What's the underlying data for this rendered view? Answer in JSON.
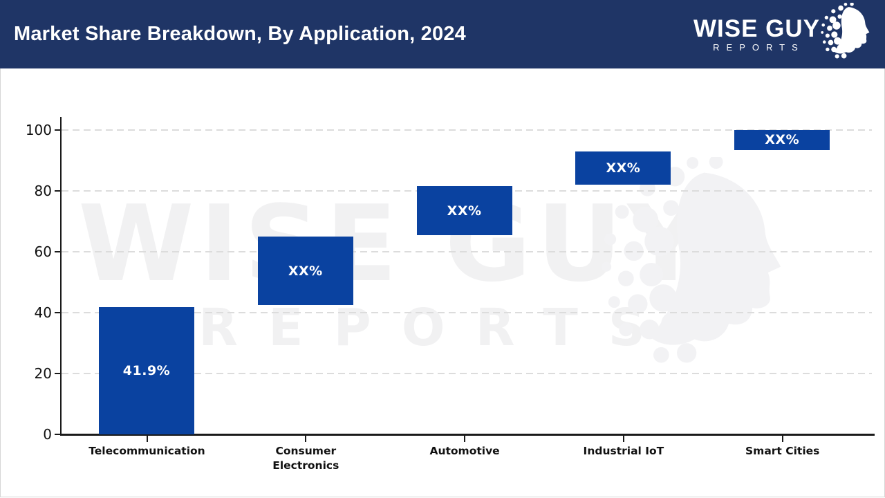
{
  "header": {
    "title": "Market Share Breakdown, By Application, 2024",
    "logo": {
      "line1": "WISE GUY",
      "line2": "REPORTS"
    }
  },
  "watermark": {
    "line1": "WISE GUY",
    "line2": "REPORTS"
  },
  "chart_data": {
    "type": "bar",
    "variant": "waterfall",
    "title": "Market Share Breakdown, By Application, 2024",
    "categories": [
      "Telecommunication",
      "Consumer Electronics",
      "Automotive",
      "Industrial IoT",
      "Smart Cities"
    ],
    "tick_labels": [
      "Telecommunication",
      "Consumer\nElectronics",
      "Automotive",
      "Industrial IoT",
      "Smart Cities"
    ],
    "segments": [
      {
        "category": "Telecommunication",
        "start": 0,
        "end": 41.9,
        "label": "41.9%"
      },
      {
        "category": "Consumer Electronics",
        "start": 42.5,
        "end": 65.0,
        "label": "XX%"
      },
      {
        "category": "Automotive",
        "start": 65.5,
        "end": 81.5,
        "label": "XX%"
      },
      {
        "category": "Industrial IoT",
        "start": 82.0,
        "end": 93.0,
        "label": "XX%"
      },
      {
        "category": "Smart Cities",
        "start": 93.5,
        "end": 100.0,
        "label": "XX%"
      }
    ],
    "yticks": [
      0,
      20,
      40,
      60,
      80,
      100
    ],
    "ylim": [
      0,
      104
    ],
    "xlabel": "",
    "ylabel": "",
    "grid": "horizontal-dashed",
    "legend": "none",
    "colors": {
      "bar": "#0a42a0",
      "bar_label": "#ffffff",
      "axis": "#1a1a1a",
      "grid": "#dcdcdc",
      "header_bg": "#1f3566",
      "watermark": "#f1f1f2"
    }
  }
}
